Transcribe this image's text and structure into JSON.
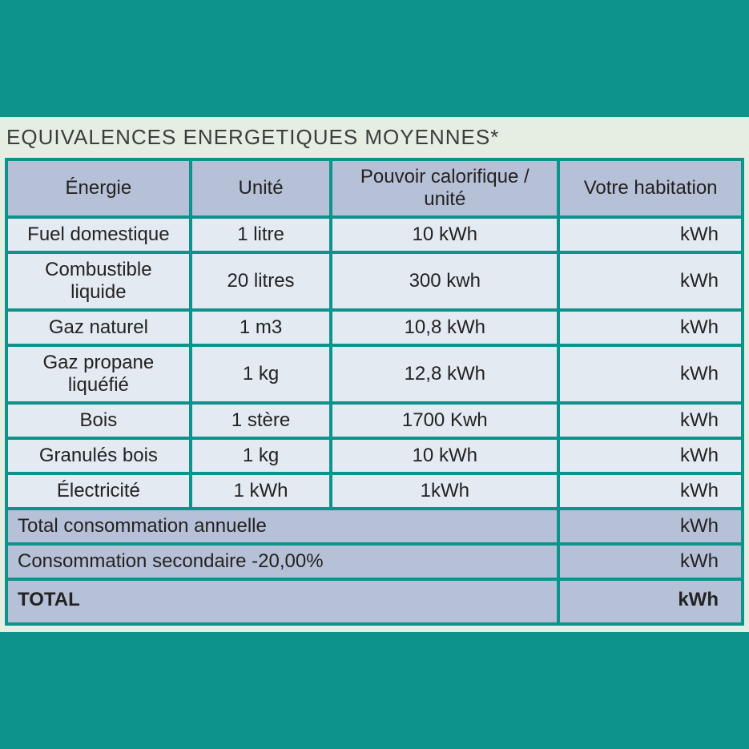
{
  "title": "EQUIVALENCES ENERGETIQUES MOYENNES*",
  "columns": {
    "energie": "Énergie",
    "unite": "Unité",
    "pouvoir": "Pouvoir calorifique / unité",
    "habitation": "Votre habitation"
  },
  "rows": [
    {
      "energie": "Fuel domestique",
      "unite": "1 litre",
      "pouvoir": "10 kWh",
      "habitation": "kWh"
    },
    {
      "energie": "Combustible liquide",
      "unite": "20 litres",
      "pouvoir": "300 kwh",
      "habitation": "kWh"
    },
    {
      "energie": "Gaz naturel",
      "unite": "1 m3",
      "pouvoir": "10,8 kWh",
      "habitation": "kWh"
    },
    {
      "energie": "Gaz propane liquéfié",
      "unite": "1 kg",
      "pouvoir": "12,8 kWh",
      "habitation": "kWh"
    },
    {
      "energie": "Bois",
      "unite": "1 stère",
      "pouvoir": "1700 Kwh",
      "habitation": "kWh"
    },
    {
      "energie": "Granulés bois",
      "unite": "1 kg",
      "pouvoir": "10 kWh",
      "habitation": "kWh"
    },
    {
      "energie": "Électricité",
      "unite": "1 kWh",
      "pouvoir": "1kWh",
      "habitation": "kWh"
    }
  ],
  "footers": [
    {
      "label": "Total consommation annuelle",
      "value": "kWh",
      "bold": false
    },
    {
      "label": "Consommation secondaire -20,00%",
      "value": "kWh",
      "bold": false
    },
    {
      "label": "TOTAL",
      "value": "kWh",
      "bold": true
    }
  ],
  "styling": {
    "page_background": "#0d938b",
    "panel_background": "#e6ede3",
    "table_border_color": "#0d938b",
    "header_row_background": "#b6c0d6",
    "data_row_background": "#e4eaf2",
    "footer_row_background": "#b6c0d6",
    "title_color": "#3a3f3c",
    "text_color": "#222222",
    "title_fontsize": 26,
    "cell_fontsize": 24,
    "cell_spacing": 4,
    "column_widths_pct": [
      25,
      19,
      31,
      25
    ]
  }
}
